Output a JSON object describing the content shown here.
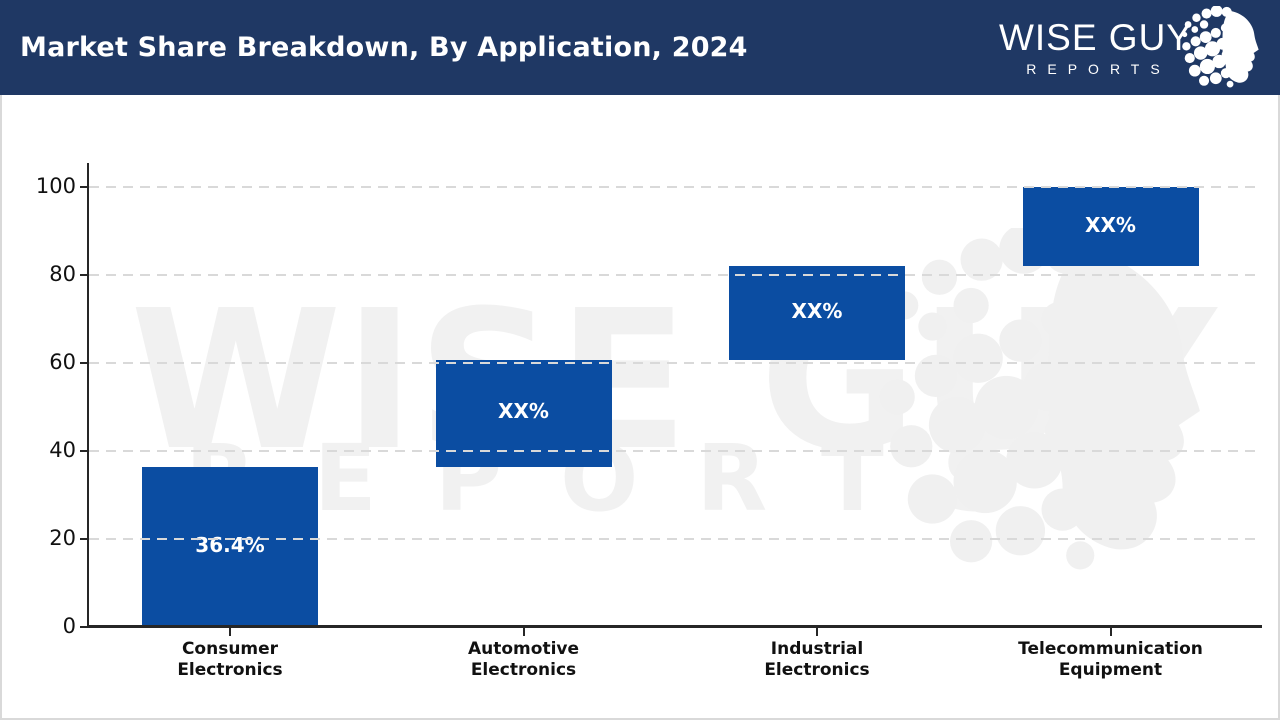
{
  "header": {
    "title": "Market Share Breakdown, By Application, 2024",
    "bg_color": "#1f3864",
    "logo": {
      "line1": "WISE GUY",
      "line2": "REPORTS"
    }
  },
  "watermark": {
    "line1": "WISE GUY",
    "line2": "REPORTS"
  },
  "chart_data": {
    "type": "bar",
    "subtype": "waterfall",
    "title": "Market Share Breakdown, By Application, 2024",
    "xlabel": "",
    "ylabel": "",
    "ylim": [
      0,
      100
    ],
    "yticks": [
      0,
      20,
      40,
      60,
      80,
      100
    ],
    "grid": "horizontal-dashed",
    "legend": "none",
    "bar_color": "#0b4da2",
    "value_label_color": "#ffffff",
    "segments": [
      {
        "category": "Consumer Electronics",
        "label_lines": [
          "Consumer",
          "Electronics"
        ],
        "start": 0,
        "end": 36.4,
        "value": 36.4,
        "value_label": "36.4%"
      },
      {
        "category": "Automotive Electronics",
        "label_lines": [
          "Automotive",
          "Electronics"
        ],
        "start": 36.4,
        "end": 60.6,
        "value": 24.2,
        "value_label": "XX%"
      },
      {
        "category": "Industrial Electronics",
        "label_lines": [
          "Industrial",
          "Electronics"
        ],
        "start": 60.6,
        "end": 82.0,
        "value": 21.4,
        "value_label": "XX%"
      },
      {
        "category": "Telecommunication Equipment",
        "label_lines": [
          "Telecommunication",
          "Equipment"
        ],
        "start": 82.0,
        "end": 100.0,
        "value": 18.0,
        "value_label": "XX%"
      }
    ]
  }
}
